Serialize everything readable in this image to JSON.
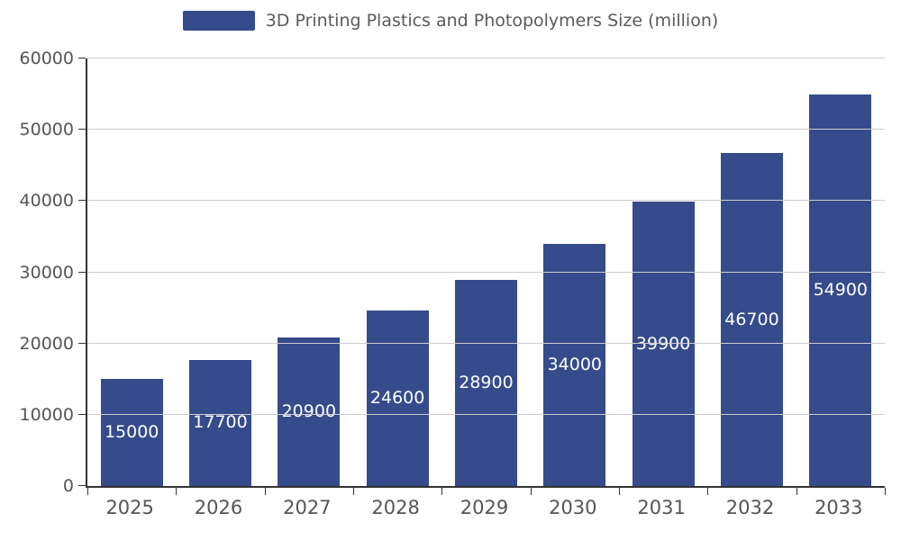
{
  "chart": {
    "legend_label": "3D Printing Plastics and Photopolymers Size (million)",
    "colors": {
      "bar": "#354B8C",
      "grid": "#cccccc",
      "axis": "#333333",
      "tick_text": "#555555",
      "value_text": "#ffffff"
    }
  },
  "chart_data": {
    "type": "bar",
    "title": "3D Printing Plastics and Photopolymers Size (million)",
    "categories": [
      "2025",
      "2026",
      "2027",
      "2028",
      "2029",
      "2030",
      "2031",
      "2032",
      "2033"
    ],
    "values": [
      15000,
      17700,
      20900,
      24600,
      28900,
      34000,
      39900,
      46700,
      54900
    ],
    "xlabel": "",
    "ylabel": "",
    "ylim": [
      0,
      60000
    ],
    "ytick_step": 10000,
    "yticks": [
      0,
      10000,
      20000,
      30000,
      40000,
      50000,
      60000
    ],
    "grid": true,
    "legend_position": "top",
    "value_labels": "inside-center"
  }
}
